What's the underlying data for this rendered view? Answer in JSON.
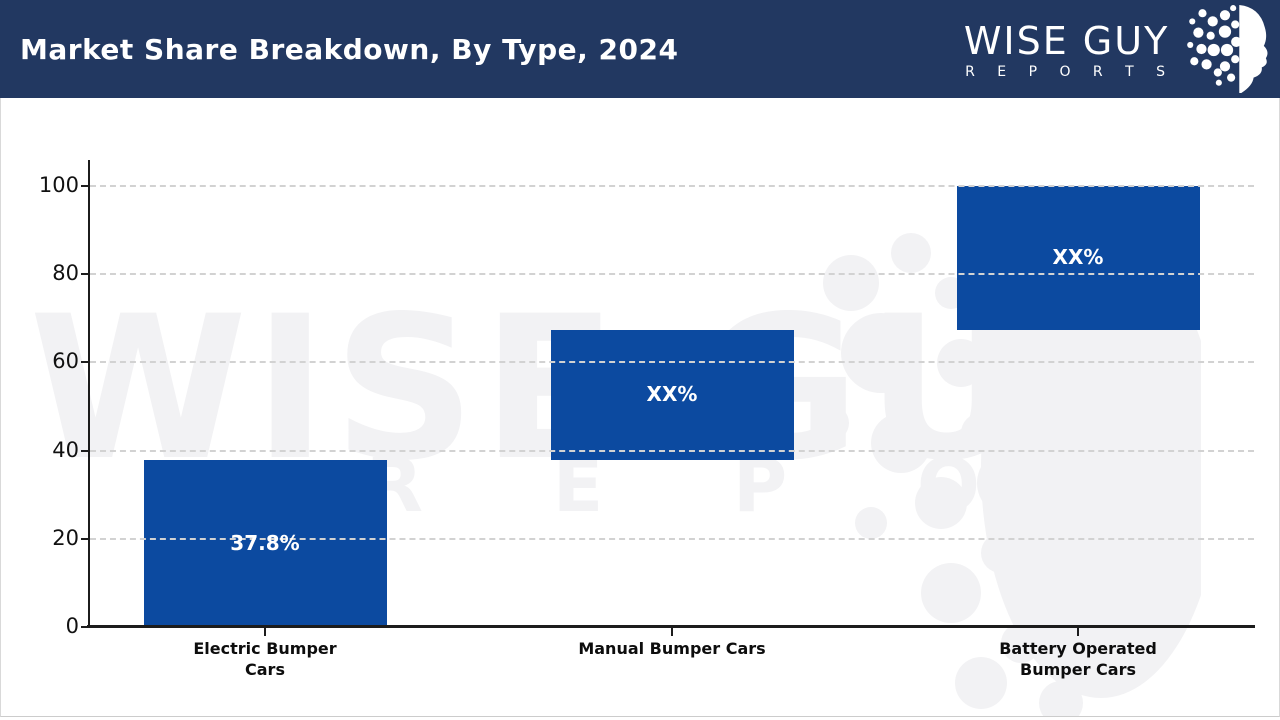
{
  "header": {
    "title": "Market Share Breakdown, By Type, 2024",
    "background_color": "#223861",
    "logo": {
      "primary": "WISE GUY",
      "secondary": "R E P O R T S"
    }
  },
  "watermark": {
    "primary": "WISE GUY",
    "secondary": "R E P O R T S"
  },
  "chart_data": {
    "type": "bar",
    "variant": "stacked_segment_waterfall",
    "title": "Market Share Breakdown, By Type, 2024",
    "categories": [
      "Electric Bumper Cars",
      "Manual Bumper Cars",
      "Battery Operated Bumper Cars"
    ],
    "category_label_lines": [
      [
        "Electric Bumper",
        "Cars"
      ],
      [
        "Manual Bumper Cars"
      ],
      [
        "Battery Operated",
        "Bumper Cars"
      ]
    ],
    "segments": [
      {
        "category": "Electric Bumper Cars",
        "start": 0,
        "end": 37.8,
        "label": "37.8%"
      },
      {
        "category": "Manual Bumper Cars",
        "start": 37.8,
        "end": 67.3,
        "label": "XX%"
      },
      {
        "category": "Battery Operated Bumper Cars",
        "start": 67.3,
        "end": 100,
        "label": "XX%"
      }
    ],
    "yticks": [
      0,
      20,
      40,
      60,
      80,
      100
    ],
    "ylim": [
      0,
      100
    ],
    "xlabel": "",
    "ylabel": "",
    "grid": {
      "horizontal": true,
      "style": "dashed",
      "over_bars": true
    },
    "legend": "none",
    "bar_color": "#0c4aa0",
    "bar_label_color": "#ffffff"
  }
}
